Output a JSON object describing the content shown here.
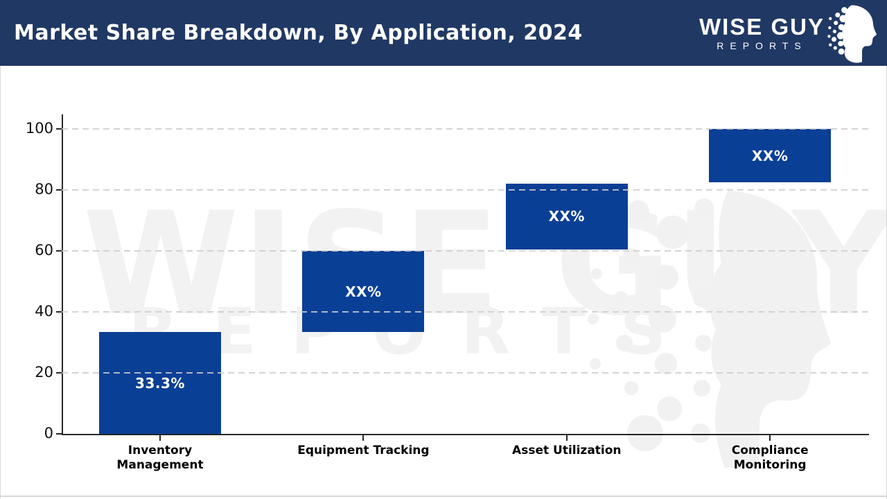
{
  "header": {
    "title": "Market Share Breakdown, By Application, 2024",
    "logo": {
      "line1": "WISE GUY",
      "line2": "REPORTS"
    }
  },
  "watermark": {
    "line1": "WISE GUY",
    "line2": "REPORTS"
  },
  "chart_data": {
    "type": "bar",
    "subtype": "waterfall",
    "title": "Market Share Breakdown, By Application, 2024",
    "categories": [
      "Inventory Management",
      "Equipment Tracking",
      "Asset Utilization",
      "Compliance Monitoring"
    ],
    "category_label_lines": [
      [
        "Inventory",
        "Management"
      ],
      [
        "Equipment Tracking"
      ],
      [
        "Asset Utilization"
      ],
      [
        "Compliance",
        "Monitoring"
      ]
    ],
    "segments": [
      {
        "category": "Inventory Management",
        "start": 0,
        "end": 33.3,
        "label": "33.3%"
      },
      {
        "category": "Equipment Tracking",
        "start": 33.3,
        "end": 60,
        "label": "XX%"
      },
      {
        "category": "Asset Utilization",
        "start": 60.5,
        "end": 82,
        "label": "XX%"
      },
      {
        "category": "Compliance Monitoring",
        "start": 82.5,
        "end": 100,
        "label": "XX%"
      }
    ],
    "ylim": [
      0,
      105
    ],
    "yticks": [
      0,
      20,
      40,
      60,
      80,
      100
    ],
    "xlabel": "",
    "ylabel": "",
    "grid": true,
    "grid_style": "dashed",
    "legend": "none",
    "bar_color": "#0a3f96",
    "bar_label_color": "#ffffff",
    "header_color": "#203864",
    "watermark_color": "#f2f2f2"
  }
}
